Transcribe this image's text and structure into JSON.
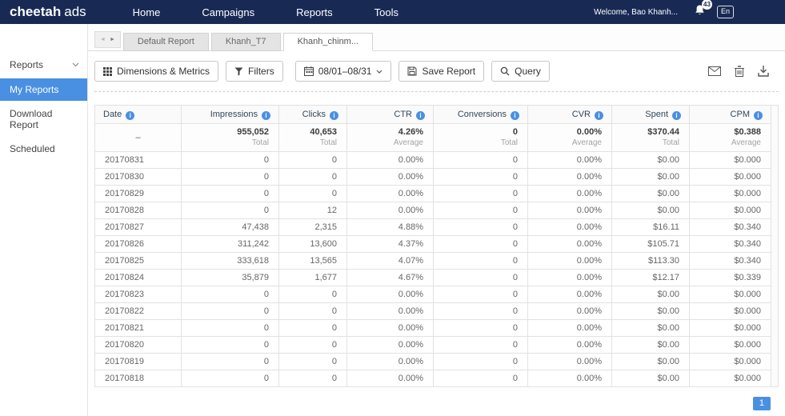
{
  "navbar": {
    "brand_bold": "cheetah",
    "brand_light": "ads",
    "items": [
      {
        "label": "Home"
      },
      {
        "label": "Campaigns"
      },
      {
        "label": "Reports"
      },
      {
        "label": "Tools"
      }
    ],
    "welcome": "Welcome,",
    "username": "Bao Khanh...",
    "notification_count": "43",
    "language": "En"
  },
  "sidebar": {
    "section_label": "Reports",
    "items": [
      {
        "label": "My Reports",
        "active": true
      },
      {
        "label": "Download Report",
        "active": false
      },
      {
        "label": "Scheduled",
        "active": false
      }
    ]
  },
  "tabs": [
    {
      "label": "Default Report",
      "active": false
    },
    {
      "label": "Khanh_T7",
      "active": false
    },
    {
      "label": "Khanh_chinm...",
      "active": true
    }
  ],
  "toolbar": {
    "dimensions_metrics_label": "Dimensions & Metrics",
    "filters_label": "Filters",
    "date_range_label": "08/01–08/31",
    "save_report_label": "Save Report",
    "query_label": "Query"
  },
  "table": {
    "columns": [
      "Date",
      "Impressions",
      "Clicks",
      "CTR",
      "Conversions",
      "CVR",
      "Spent",
      "CPM"
    ],
    "total_row": {
      "date": "–",
      "values": [
        {
          "value": "955,052",
          "sub": "Total"
        },
        {
          "value": "40,653",
          "sub": "Total"
        },
        {
          "value": "4.26%",
          "sub": "Average"
        },
        {
          "value": "0",
          "sub": "Total"
        },
        {
          "value": "0.00%",
          "sub": "Average"
        },
        {
          "value": "$370.44",
          "sub": "Total"
        },
        {
          "value": "$0.388",
          "sub": "Average"
        }
      ]
    },
    "rows": [
      [
        "20170831",
        "0",
        "0",
        "0.00%",
        "0",
        "0.00%",
        "$0.00",
        "$0.000"
      ],
      [
        "20170830",
        "0",
        "0",
        "0.00%",
        "0",
        "0.00%",
        "$0.00",
        "$0.000"
      ],
      [
        "20170829",
        "0",
        "0",
        "0.00%",
        "0",
        "0.00%",
        "$0.00",
        "$0.000"
      ],
      [
        "20170828",
        "0",
        "12",
        "0.00%",
        "0",
        "0.00%",
        "$0.00",
        "$0.000"
      ],
      [
        "20170827",
        "47,438",
        "2,315",
        "4.88%",
        "0",
        "0.00%",
        "$16.11",
        "$0.340"
      ],
      [
        "20170826",
        "311,242",
        "13,600",
        "4.37%",
        "0",
        "0.00%",
        "$105.71",
        "$0.340"
      ],
      [
        "20170825",
        "333,618",
        "13,565",
        "4.07%",
        "0",
        "0.00%",
        "$113.30",
        "$0.340"
      ],
      [
        "20170824",
        "35,879",
        "1,677",
        "4.67%",
        "0",
        "0.00%",
        "$12.17",
        "$0.339"
      ],
      [
        "20170823",
        "0",
        "0",
        "0.00%",
        "0",
        "0.00%",
        "$0.00",
        "$0.000"
      ],
      [
        "20170822",
        "0",
        "0",
        "0.00%",
        "0",
        "0.00%",
        "$0.00",
        "$0.000"
      ],
      [
        "20170821",
        "0",
        "0",
        "0.00%",
        "0",
        "0.00%",
        "$0.00",
        "$0.000"
      ],
      [
        "20170820",
        "0",
        "0",
        "0.00%",
        "0",
        "0.00%",
        "$0.00",
        "$0.000"
      ],
      [
        "20170819",
        "0",
        "0",
        "0.00%",
        "0",
        "0.00%",
        "$0.00",
        "$0.000"
      ],
      [
        "20170818",
        "0",
        "0",
        "0.00%",
        "0",
        "0.00%",
        "$0.00",
        "$0.000"
      ]
    ]
  },
  "pagination": {
    "page": "1"
  },
  "colors": {
    "navy": "#182a54",
    "accent_blue": "#4a90e2"
  }
}
